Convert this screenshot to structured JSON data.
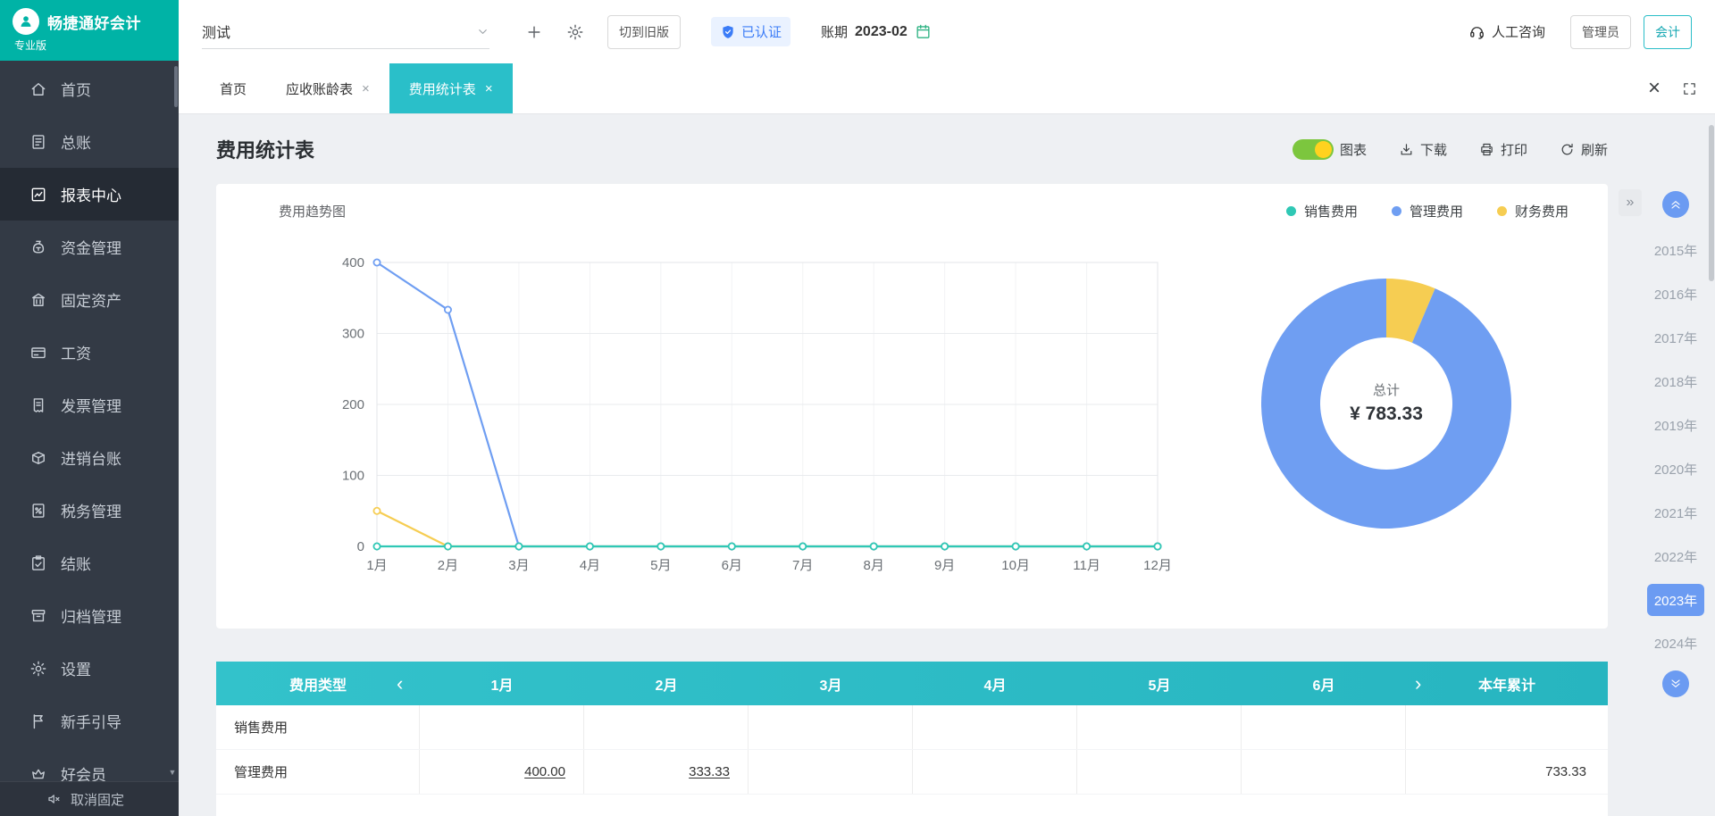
{
  "app": {
    "brand": "畅捷通好会计",
    "edition": "专业版",
    "colors": {
      "accent_teal": "#2abfc9",
      "sidebar_bg": "#333a45",
      "brand_teal": "#00b3a6",
      "series_sales": "#2fc8b5",
      "series_admin": "#6f9ef2",
      "series_finance": "#f6cd52",
      "year_selected_blue": "#6b9bf2",
      "certified_blue": "#3b7cf7",
      "toggle_green": "#7cc63e",
      "toggle_knob_yellow": "#ffd21f"
    }
  },
  "sidebar": {
    "items": [
      {
        "label": "首页",
        "icon": "home",
        "active": false
      },
      {
        "label": "总账",
        "icon": "ledger",
        "active": false
      },
      {
        "label": "报表中心",
        "icon": "report",
        "active": true
      },
      {
        "label": "资金管理",
        "icon": "fund",
        "active": false
      },
      {
        "label": "固定资产",
        "icon": "asset",
        "active": false
      },
      {
        "label": "工资",
        "icon": "salary",
        "active": false
      },
      {
        "label": "发票管理",
        "icon": "invoice",
        "active": false
      },
      {
        "label": "进销台账",
        "icon": "inventory",
        "active": false
      },
      {
        "label": "税务管理",
        "icon": "tax",
        "active": false
      },
      {
        "label": "结账",
        "icon": "closing",
        "active": false
      },
      {
        "label": "归档管理",
        "icon": "archive",
        "active": false
      },
      {
        "label": "设置",
        "icon": "settings",
        "active": false
      },
      {
        "label": "新手引导",
        "icon": "guide",
        "active": false
      },
      {
        "label": "好会员",
        "icon": "member",
        "active": false
      }
    ],
    "footer_label": "取消固定"
  },
  "topbar": {
    "account_set": "测试",
    "switch_old": "切到旧版",
    "certified": "已认证",
    "period_label": "账期",
    "period_value": "2023-02",
    "consult": "人工咨询",
    "admin": "管理员",
    "role": "会计"
  },
  "tabs": [
    {
      "label": "首页",
      "closable": false,
      "active": false
    },
    {
      "label": "应收账龄表",
      "closable": true,
      "active": false
    },
    {
      "label": "费用统计表",
      "closable": true,
      "active": true
    }
  ],
  "page": {
    "title": "费用统计表",
    "toggle_label": "图表",
    "download": "下载",
    "print": "打印",
    "refresh": "刷新"
  },
  "chart_data": [
    {
      "type": "line",
      "title": "费用趋势图",
      "x": [
        "1月",
        "2月",
        "3月",
        "4月",
        "5月",
        "6月",
        "7月",
        "8月",
        "9月",
        "10月",
        "11月",
        "12月"
      ],
      "series": [
        {
          "name": "销售费用",
          "color": "#2fc8b5",
          "values": [
            0,
            0,
            0,
            0,
            0,
            0,
            0,
            0,
            0,
            0,
            0,
            0
          ]
        },
        {
          "name": "管理费用",
          "color": "#6f9ef2",
          "values": [
            400,
            333.33,
            0,
            0,
            0,
            0,
            0,
            0,
            0,
            0,
            0,
            0
          ]
        },
        {
          "name": "财务费用",
          "color": "#f6cd52",
          "values": [
            50,
            0,
            0,
            0,
            0,
            0,
            0,
            0,
            0,
            0,
            0,
            0
          ]
        }
      ],
      "ylim": [
        0,
        400
      ],
      "yticks": [
        0,
        100,
        200,
        300,
        400
      ],
      "grid": true,
      "legend_position": "top-right"
    },
    {
      "type": "pie",
      "donut": true,
      "center_label": "总计",
      "center_value": "¥ 783.33",
      "slices": [
        {
          "name": "销售费用",
          "value": 0,
          "color": "#2fc8b5"
        },
        {
          "name": "财务费用",
          "value": 50,
          "color": "#f6cd52"
        },
        {
          "name": "管理费用",
          "value": 733.33,
          "color": "#6f9ef2"
        }
      ]
    }
  ],
  "table": {
    "col_type": "费用类型",
    "months": [
      "1月",
      "2月",
      "3月",
      "4月",
      "5月",
      "6月"
    ],
    "col_total": "本年累计",
    "rows": [
      {
        "type": "销售费用",
        "values": [
          "",
          "",
          "",
          "",
          "",
          ""
        ],
        "total": ""
      },
      {
        "type": "管理费用",
        "values": [
          "400.00",
          "333.33",
          "",
          "",
          "",
          ""
        ],
        "total": "733.33"
      }
    ]
  },
  "years": {
    "items": [
      "2015年",
      "2016年",
      "2017年",
      "2018年",
      "2019年",
      "2020年",
      "2021年",
      "2022年",
      "2023年",
      "2024年"
    ],
    "selected": "2023年"
  }
}
